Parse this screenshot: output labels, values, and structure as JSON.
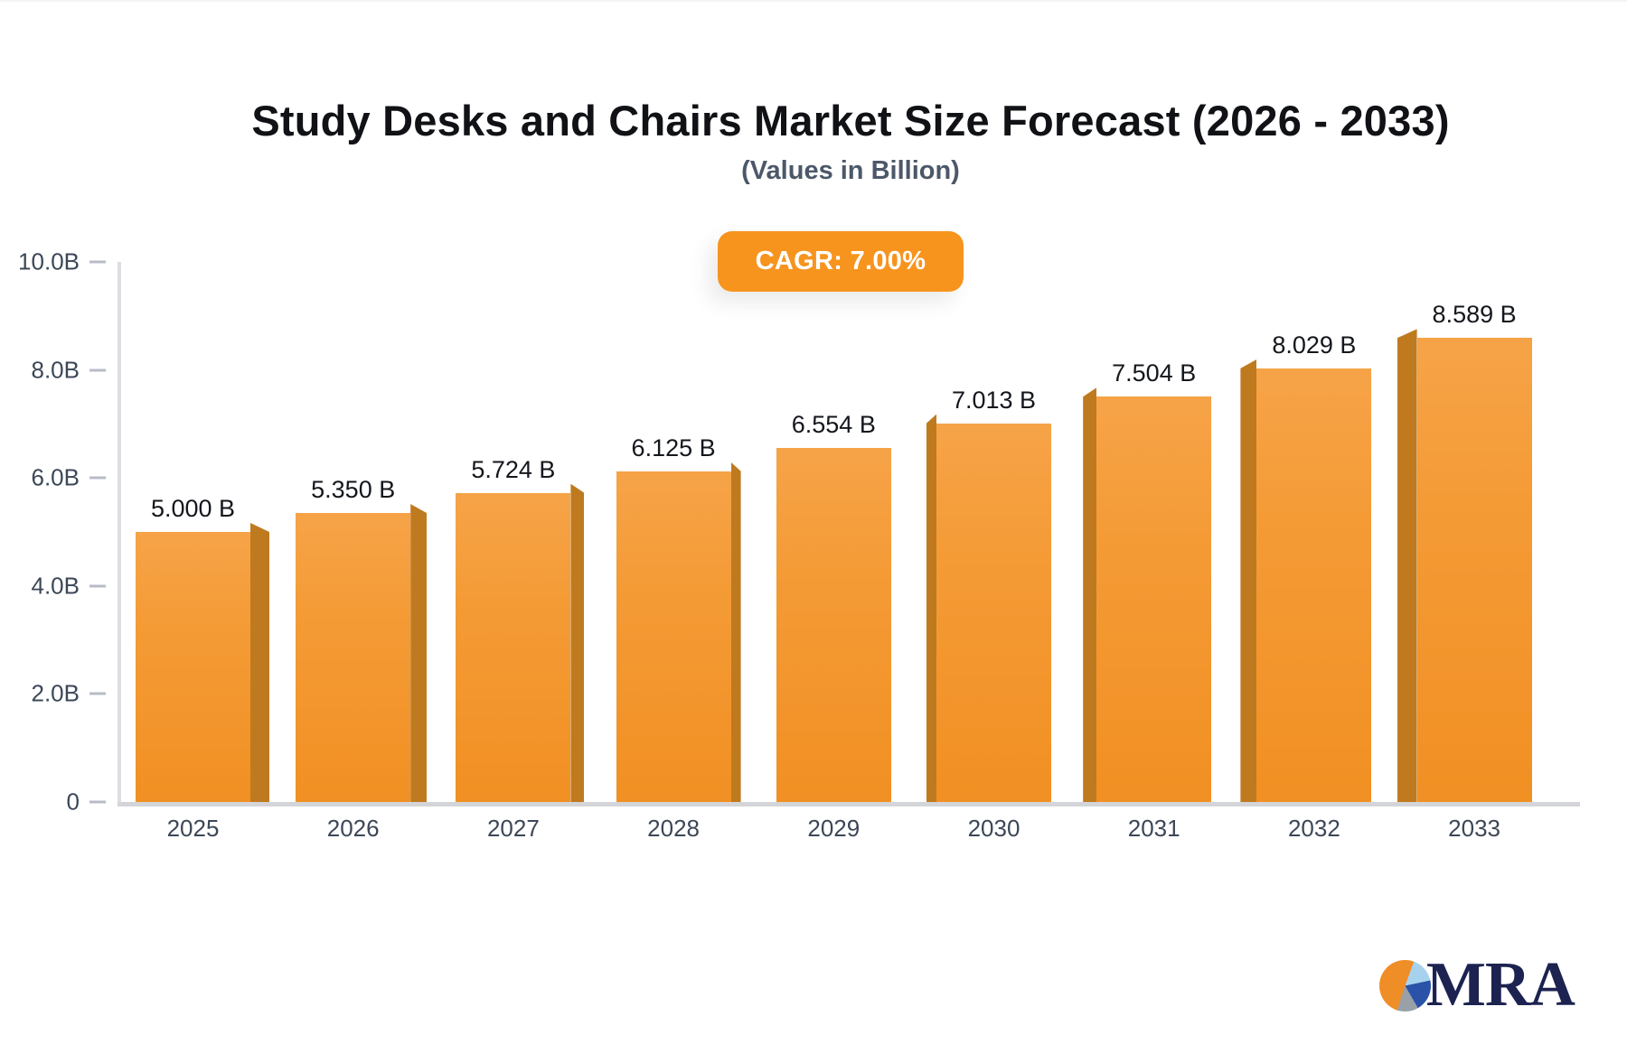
{
  "header": {
    "title": "Study Desks and Chairs Market Size Forecast (2026 - 2033)",
    "subtitle": "(Values in Billion)"
  },
  "badge": {
    "label": "CAGR: 7.00%"
  },
  "logo": {
    "text": "MRA",
    "icon": "pie-chart-icon"
  },
  "colors": {
    "bar_face_top": "#f6a348",
    "bar_face_bottom": "#f19023",
    "bar_side": "#bf7a1f",
    "badge_background": "#F7941E",
    "badge_text": "#ffffff",
    "axis_line": "#d3d5d9",
    "tick_text": "#3c4757",
    "logo_navy": "#1c2350",
    "logo_orange": "#ef8e26"
  },
  "chart_data": {
    "type": "bar",
    "title": "Study Desks and Chairs Market Size Forecast (2026 - 2033)",
    "subtitle": "(Values in Billion)",
    "annotation": "CAGR: 7.00%",
    "categories": [
      "2025",
      "2026",
      "2027",
      "2028",
      "2029",
      "2030",
      "2031",
      "2032",
      "2033"
    ],
    "values": [
      5.0,
      5.35,
      5.724,
      6.125,
      6.554,
      7.013,
      7.504,
      8.029,
      8.589
    ],
    "value_labels": [
      "5.000 B",
      "5.350 B",
      "5.724 B",
      "6.125 B",
      "6.554 B",
      "7.013 B",
      "7.504 B",
      "8.029 B",
      "8.589 B"
    ],
    "xlabel": "",
    "ylabel": "",
    "ylim": [
      0,
      10
    ],
    "yticks": [
      {
        "value": 10,
        "label": "10.0B"
      },
      {
        "value": 8,
        "label": "8.0B"
      },
      {
        "value": 6,
        "label": "6.0B"
      },
      {
        "value": 4,
        "label": "4.0B"
      },
      {
        "value": 2,
        "label": "2.0B"
      },
      {
        "value": 0,
        "label": "0"
      }
    ],
    "grid": false,
    "legend": false,
    "style": "3d-extruded-bars, perspective toward center bar"
  }
}
